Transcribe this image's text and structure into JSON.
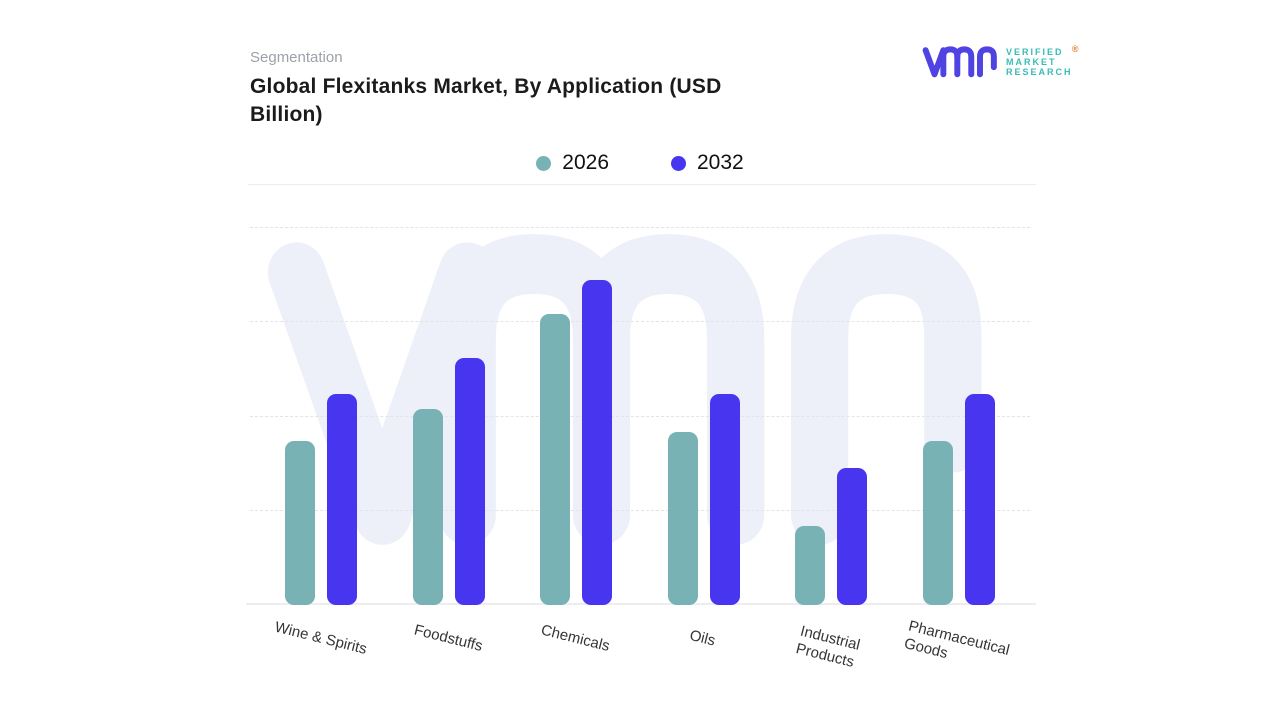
{
  "page": {
    "eyebrow": "Segmentation",
    "title": "Global Flexitanks Market, By Application (USD Billion)"
  },
  "logo": {
    "monogram": "vmr",
    "wordmark_lines": [
      "VERIFIED",
      "MARKET",
      "RESEARCH"
    ],
    "registered_mark": "®",
    "monogram_color": "#4f43e1",
    "wordmark_color": "#36bcb5",
    "registered_mark_color": "#de8030"
  },
  "legend": {
    "items": [
      {
        "label": "2026",
        "color": "#79b2b4"
      },
      {
        "label": "2032",
        "color": "#4735f0"
      }
    ]
  },
  "chart_data": {
    "type": "bar",
    "title": "Global Flexitanks Market, By Application (USD Billion)",
    "categories": [
      "Wine & Spirits",
      "Foodstuffs",
      "Chemicals",
      "Oils",
      "Industrial Products",
      "Pharmaceutical Goods"
    ],
    "category_label_lines": [
      [
        "Wine & Spirits"
      ],
      [
        "Foodstuffs"
      ],
      [
        "Chemicals"
      ],
      [
        "Oils"
      ],
      [
        "Industrial",
        "Products"
      ],
      [
        "Pharmaceutical",
        "Goods"
      ]
    ],
    "series": [
      {
        "name": "2026",
        "color": "#79b2b4",
        "values": [
          1.74,
          2.08,
          3.09,
          1.84,
          0.84,
          1.74
        ]
      },
      {
        "name": "2032",
        "color": "#4735f0",
        "values": [
          2.24,
          2.62,
          3.45,
          2.24,
          1.45,
          2.24
        ]
      }
    ],
    "xlabel": "",
    "ylabel": "",
    "y_axis": {
      "min": 0,
      "max": 4,
      "gridline_values": [
        1,
        2,
        3,
        4
      ],
      "tick_labels_visible": false,
      "gridline_style": "dashed"
    },
    "value_note": "No y-axis tick labels shown; values estimated in gridline units (baseline = 0, top gridline = 4)",
    "legend_position": "top-center",
    "bar_style": "rounded",
    "watermark": "vmr monogram",
    "colors": {
      "gridline": "#e3e4e8",
      "baseline": "#ededf1",
      "watermark": "#eef0f9"
    }
  }
}
